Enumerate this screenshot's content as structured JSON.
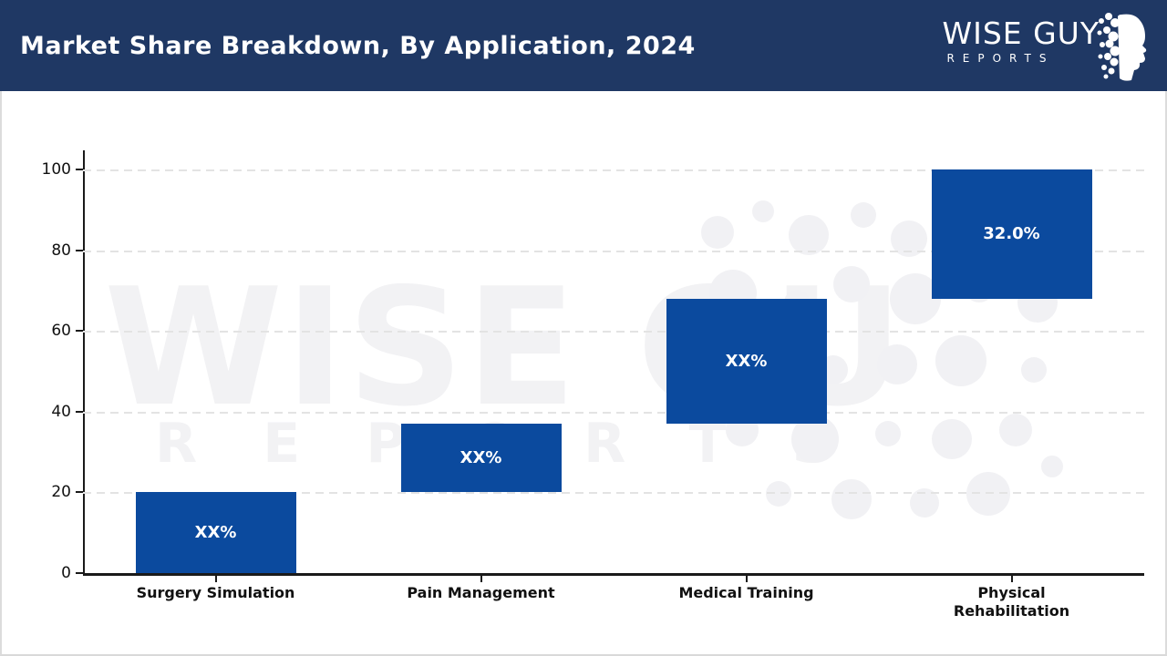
{
  "header": {
    "title": "Market Share Breakdown, By Application, 2024",
    "logo": {
      "brand": "WISE GUY",
      "sub": "REPORTS"
    }
  },
  "watermark": {
    "line1": "WISE GU",
    "line2": "REPORTS"
  },
  "colors": {
    "header_bg": "#1f3864",
    "bar": "#0b4a9e",
    "axis": "#1a1a1a",
    "gridline": "#e3e3e3",
    "watermark": "#f2f2f4",
    "bar_label_text": "#ffffff"
  },
  "chart_data": {
    "type": "bar",
    "subtype": "floating-waterfall",
    "title": "Market Share Breakdown, By Application, 2024",
    "categories": [
      "Surgery Simulation",
      "Pain Management",
      "Medical Training",
      "Physical Rehabilitation"
    ],
    "tick_labels": [
      "Surgery Simulation",
      "Pain Management",
      "Medical Training",
      "Physical\nRehabilitation"
    ],
    "starts": [
      0,
      20,
      37,
      68
    ],
    "values": [
      20,
      17,
      31,
      32
    ],
    "bar_labels": [
      "XX%",
      "XX%",
      "XX%",
      "32.0%"
    ],
    "yticks": [
      0,
      20,
      40,
      60,
      80,
      100
    ],
    "ylim": [
      0,
      105
    ],
    "xlabel": "",
    "ylabel": "",
    "legend": "none",
    "grid": "horizontal-dashed"
  }
}
